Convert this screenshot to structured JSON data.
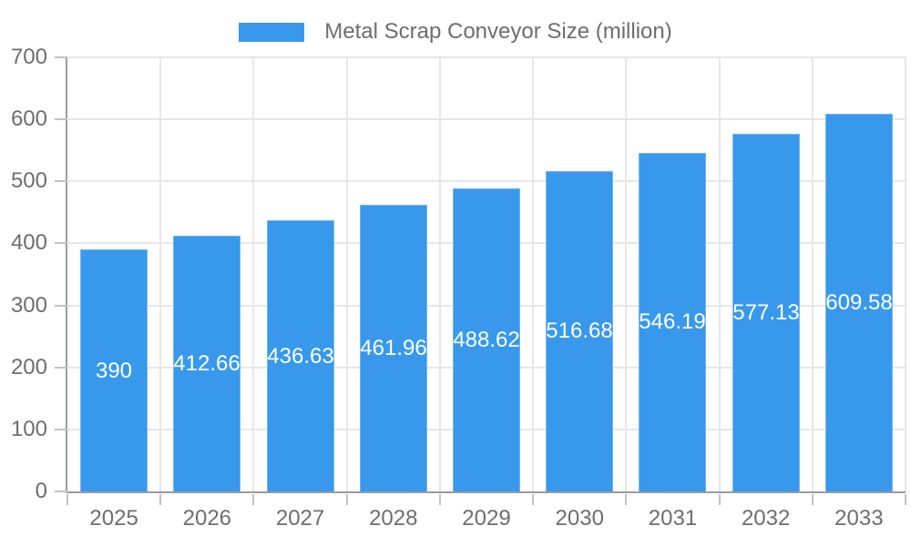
{
  "legend": {
    "label": "Metal Scrap Conveyor Size (million)"
  },
  "colors": {
    "bar": "#3899EC",
    "bar_border": "#74b6f3",
    "axis": "#9b9b9b",
    "grid": "#e7e7e7",
    "tick": "#c2c2c2",
    "axis_text": "#6e6e6e",
    "bar_label_text": "#ffffff",
    "background": "#ffffff"
  },
  "chart_data": {
    "type": "bar",
    "title": "Metal Scrap Conveyor Size (million)",
    "categories": [
      "2025",
      "2026",
      "2027",
      "2028",
      "2029",
      "2030",
      "2031",
      "2032",
      "2033"
    ],
    "values": [
      390,
      412.66,
      436.63,
      461.96,
      488.62,
      516.68,
      546.19,
      577.13,
      609.58
    ],
    "value_labels": [
      "390",
      "412.66",
      "436.63",
      "461.96",
      "488.62",
      "516.68",
      "546.19",
      "577.13",
      "609.58"
    ],
    "xlabel": "",
    "ylabel": "",
    "ylim": [
      0,
      700
    ],
    "yticks": [
      0,
      100,
      200,
      300,
      400,
      500,
      600,
      700
    ],
    "grid": true,
    "legend_position": "top"
  }
}
